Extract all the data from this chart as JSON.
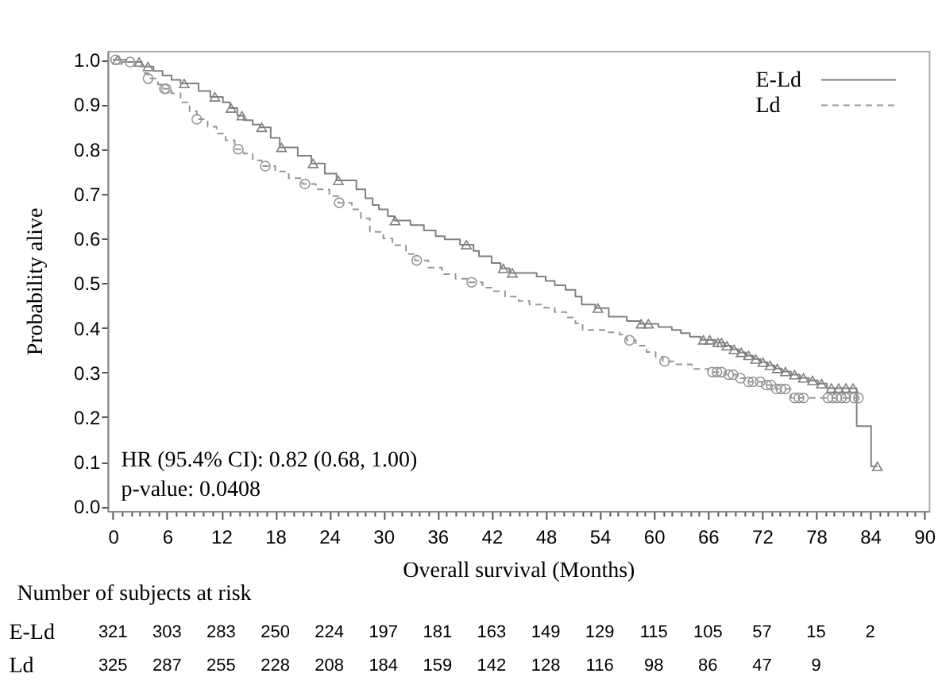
{
  "chart_data": [
    {
      "type": "step",
      "xlabel": "Overall survival (Months)",
      "ylabel": "Probability alive",
      "annotations": [
        "HR (95.4% CI): 0.82 (0.68, 1.00)",
        "p-value: 0.0408"
      ],
      "xlim": [
        -0.6,
        90.5
      ],
      "ylim": [
        -0.01,
        1.02
      ],
      "xticks": [
        0,
        {
          "value": 1,
          "label": null
        },
        {
          "value": 2,
          "label": null
        },
        {
          "value": 3,
          "label": null
        },
        {
          "value": 4,
          "label": null
        },
        {
          "value": 5,
          "label": null
        },
        6,
        {
          "value": 7,
          "label": null
        },
        {
          "value": 8,
          "label": null
        },
        {
          "value": 9,
          "label": null
        },
        {
          "value": 10,
          "label": null
        },
        {
          "value": 11,
          "label": null
        },
        12,
        {
          "value": 13,
          "label": null
        },
        {
          "value": 14,
          "label": null
        },
        {
          "value": 15,
          "label": null
        },
        {
          "value": 16,
          "label": null
        },
        {
          "value": 17,
          "label": null
        },
        18,
        {
          "value": 19,
          "label": null
        },
        {
          "value": 20,
          "label": null
        },
        {
          "value": 21,
          "label": null
        },
        {
          "value": 22,
          "label": null
        },
        {
          "value": 23,
          "label": null
        },
        24,
        {
          "value": 25,
          "label": null
        },
        {
          "value": 26,
          "label": null
        },
        {
          "value": 27,
          "label": null
        },
        {
          "value": 28,
          "label": null
        },
        {
          "value": 29,
          "label": null
        },
        30,
        {
          "value": 31,
          "label": null
        },
        {
          "value": 32,
          "label": null
        },
        {
          "value": 33,
          "label": null
        },
        {
          "value": 34,
          "label": null
        },
        {
          "value": 35,
          "label": null
        },
        36,
        {
          "value": 37,
          "label": null
        },
        {
          "value": 38,
          "label": null
        },
        {
          "value": 39,
          "label": null
        },
        {
          "value": 40,
          "label": null
        },
        {
          "value": 41,
          "label": null
        },
        42,
        {
          "value": 43,
          "label": null
        },
        {
          "value": 44,
          "label": null
        },
        {
          "value": 45,
          "label": null
        },
        {
          "value": 46,
          "label": null
        },
        {
          "value": 47,
          "label": null
        },
        48,
        {
          "value": 49,
          "label": null
        },
        {
          "value": 50,
          "label": null
        },
        {
          "value": 51,
          "label": null
        },
        {
          "value": 52,
          "label": null
        },
        {
          "value": 53,
          "label": null
        },
        54,
        {
          "value": 55,
          "label": null
        },
        {
          "value": 56,
          "label": null
        },
        {
          "value": 57,
          "label": null
        },
        {
          "value": 58,
          "label": null
        },
        {
          "value": 59,
          "label": null
        },
        60,
        {
          "value": 61,
          "label": null
        },
        {
          "value": 62,
          "label": null
        },
        {
          "value": 63,
          "label": null
        },
        {
          "value": 64,
          "label": null
        },
        {
          "value": 65,
          "label": null
        },
        66,
        {
          "value": 67,
          "label": null
        },
        {
          "value": 68,
          "label": null
        },
        {
          "value": 69,
          "label": null
        },
        {
          "value": 70,
          "label": null
        },
        {
          "value": 71,
          "label": null
        },
        72,
        {
          "value": 73,
          "label": null
        },
        {
          "value": 74,
          "label": null
        },
        {
          "value": 75,
          "label": null
        },
        {
          "value": 76,
          "label": null
        },
        {
          "value": 77,
          "label": null
        },
        78,
        {
          "value": 79,
          "label": null
        },
        {
          "value": 80,
          "label": null
        },
        {
          "value": 81,
          "label": null
        },
        {
          "value": 82,
          "label": null
        },
        {
          "value": 83,
          "label": null
        },
        84,
        {
          "value": 85,
          "label": null
        },
        {
          "value": 86,
          "label": null
        },
        {
          "value": 87,
          "label": null
        },
        {
          "value": 88,
          "label": null
        },
        {
          "value": 89,
          "label": null
        },
        90
      ],
      "yticks": [
        {
          "value": 0,
          "label": "0.0"
        },
        0.1,
        0.2,
        0.3,
        0.4,
        0.5,
        0.6,
        0.7,
        0.8,
        0.9,
        {
          "value": 1,
          "label": "1.0"
        }
      ],
      "legend": "top right",
      "series": [
        {
          "name": "E-Ld",
          "color": "#808080",
          "line_style": "solid",
          "x": [
            0,
            1.5,
            3.2,
            4.5,
            5.5,
            6.5,
            7.5,
            9.5,
            10.8,
            12.2,
            13.0,
            13.8,
            14.5,
            15.5,
            16.3,
            17.5,
            18.5,
            20.5,
            22.0,
            23.5,
            24.8,
            27.0,
            28.0,
            28.8,
            29.5,
            30.5,
            31.2,
            33.0,
            34.5,
            35.8,
            36.8,
            38.5,
            40.0,
            40.6,
            42.0,
            43.0,
            44.0,
            47.0,
            48.0,
            49.0,
            50.2,
            51.3,
            52.0,
            53.5,
            55.0,
            57.0,
            58.5,
            60.5,
            62.0,
            63.0,
            64.0,
            65.2,
            66.8,
            67.8,
            68.6,
            69.4,
            70.2,
            71.0,
            71.8,
            72.6,
            73.4,
            74.2,
            75.2,
            76.2,
            77.2,
            78.2,
            79.2,
            82.5,
            84.1,
            84.8
          ],
          "values": [
            1.0,
            0.995,
            0.985,
            0.975,
            0.965,
            0.955,
            0.947,
            0.93,
            0.917,
            0.905,
            0.892,
            0.875,
            0.865,
            0.855,
            0.849,
            0.825,
            0.804,
            0.785,
            0.768,
            0.745,
            0.73,
            0.71,
            0.69,
            0.675,
            0.665,
            0.65,
            0.64,
            0.63,
            0.618,
            0.605,
            0.598,
            0.586,
            0.572,
            0.56,
            0.545,
            0.533,
            0.523,
            0.515,
            0.505,
            0.495,
            0.485,
            0.47,
            0.452,
            0.444,
            0.425,
            0.415,
            0.409,
            0.402,
            0.395,
            0.388,
            0.38,
            0.373,
            0.367,
            0.36,
            0.352,
            0.345,
            0.338,
            0.33,
            0.323,
            0.316,
            0.309,
            0.302,
            0.295,
            0.288,
            0.282,
            0.275,
            0.265,
            0.18,
            0.09,
            0.09
          ]
        },
        {
          "type": "scatter",
          "color": "#808080",
          "marker": "triangle",
          "x": [
            0.5,
            2.9,
            3.9,
            7.9,
            11.3,
            13.1,
            14.3,
            16.5,
            18.7,
            22.2,
            25.0,
            31.3,
            39.2,
            43.3,
            44.3,
            53.8,
            58.6,
            59.4,
            65.5,
            66.2,
            67.1,
            67.5,
            68.1,
            68.9,
            69.7,
            70.5,
            71.3,
            72.1,
            72.9,
            73.7,
            74.6,
            75.6,
            76.6,
            77.6,
            78.6,
            79.7,
            80.5,
            81.3,
            82.1,
            84.8
          ],
          "values": [
            1.0,
            0.995,
            0.985,
            0.947,
            0.917,
            0.892,
            0.875,
            0.849,
            0.804,
            0.768,
            0.73,
            0.64,
            0.586,
            0.533,
            0.523,
            0.444,
            0.409,
            0.409,
            0.373,
            0.373,
            0.367,
            0.367,
            0.36,
            0.352,
            0.345,
            0.338,
            0.33,
            0.323,
            0.316,
            0.309,
            0.302,
            0.295,
            0.288,
            0.282,
            0.275,
            0.265,
            0.265,
            0.265,
            0.265,
            0.09
          ]
        },
        {
          "name": "Ld",
          "color": "#969696",
          "line_style": "dashed",
          "x": [
            0,
            1.0,
            2.5,
            3.5,
            3.9,
            5.0,
            5.6,
            6.5,
            7.5,
            8.5,
            9.3,
            10.5,
            11.5,
            12.5,
            13.5,
            14.5,
            15.5,
            16.5,
            18.0,
            19.5,
            21.0,
            22.5,
            24.0,
            25.0,
            26.5,
            27.5,
            28.5,
            30.0,
            31.0,
            32.5,
            33.5,
            35.0,
            36.5,
            38.0,
            39.5,
            41.0,
            42.0,
            43.5,
            45.0,
            46.2,
            47.5,
            49.0,
            50.3,
            51.3,
            52.1,
            54.5,
            56.2,
            57.0,
            58.0,
            59.2,
            60.2,
            61.0,
            62.5,
            64.2,
            66.0,
            68.0,
            69.3,
            70.3,
            72.0,
            73.6,
            75.2,
            82.7
          ],
          "values": [
            1.0,
            0.995,
            0.985,
            0.97,
            0.958,
            0.945,
            0.935,
            0.925,
            0.905,
            0.885,
            0.867,
            0.85,
            0.835,
            0.82,
            0.8,
            0.79,
            0.775,
            0.762,
            0.75,
            0.735,
            0.722,
            0.71,
            0.695,
            0.68,
            0.665,
            0.645,
            0.615,
            0.6,
            0.585,
            0.565,
            0.551,
            0.535,
            0.52,
            0.51,
            0.502,
            0.49,
            0.482,
            0.47,
            0.46,
            0.452,
            0.445,
            0.435,
            0.423,
            0.41,
            0.395,
            0.39,
            0.385,
            0.372,
            0.36,
            0.346,
            0.335,
            0.325,
            0.318,
            0.308,
            0.301,
            0.295,
            0.287,
            0.279,
            0.272,
            0.263,
            0.243,
            0.243
          ]
        },
        {
          "type": "scatter",
          "color": "#969696",
          "marker": "circle",
          "x": [
            0.3,
            1.9,
            3.9,
            5.7,
            5.9,
            9.3,
            13.9,
            16.9,
            21.3,
            25.1,
            33.7,
            39.8,
            57.3,
            61.2,
            66.5,
            67.0,
            67.5,
            68.3,
            68.8,
            69.6,
            70.5,
            71.0,
            71.8,
            72.5,
            73.0,
            73.6,
            74.1,
            74.6,
            75.6,
            76.1,
            76.6,
            79.3,
            79.8,
            80.3,
            80.8,
            81.3,
            82.2,
            82.7
          ],
          "values": [
            1.0,
            0.995,
            0.958,
            0.935,
            0.935,
            0.867,
            0.8,
            0.762,
            0.722,
            0.68,
            0.551,
            0.502,
            0.372,
            0.325,
            0.301,
            0.301,
            0.301,
            0.295,
            0.295,
            0.287,
            0.279,
            0.279,
            0.279,
            0.272,
            0.272,
            0.263,
            0.263,
            0.263,
            0.243,
            0.243,
            0.243,
            0.243,
            0.243,
            0.243,
            0.243,
            0.243,
            0.243,
            0.243
          ]
        }
      ]
    },
    {
      "type": "other",
      "title": "Number of subjects at risk",
      "annotations": [
        "E-Ld",
        "321",
        "303",
        "283",
        "250",
        "224",
        "197",
        "181",
        "163",
        "149",
        "129",
        "115",
        "105",
        "57",
        "15",
        "2"
      ]
    },
    {
      "type": "other",
      "annotations": [
        "Ld",
        "325",
        "287",
        "255",
        "228",
        "208",
        "184",
        "159",
        "142",
        "128",
        "116",
        "98",
        "86",
        "47",
        "9"
      ]
    }
  ]
}
